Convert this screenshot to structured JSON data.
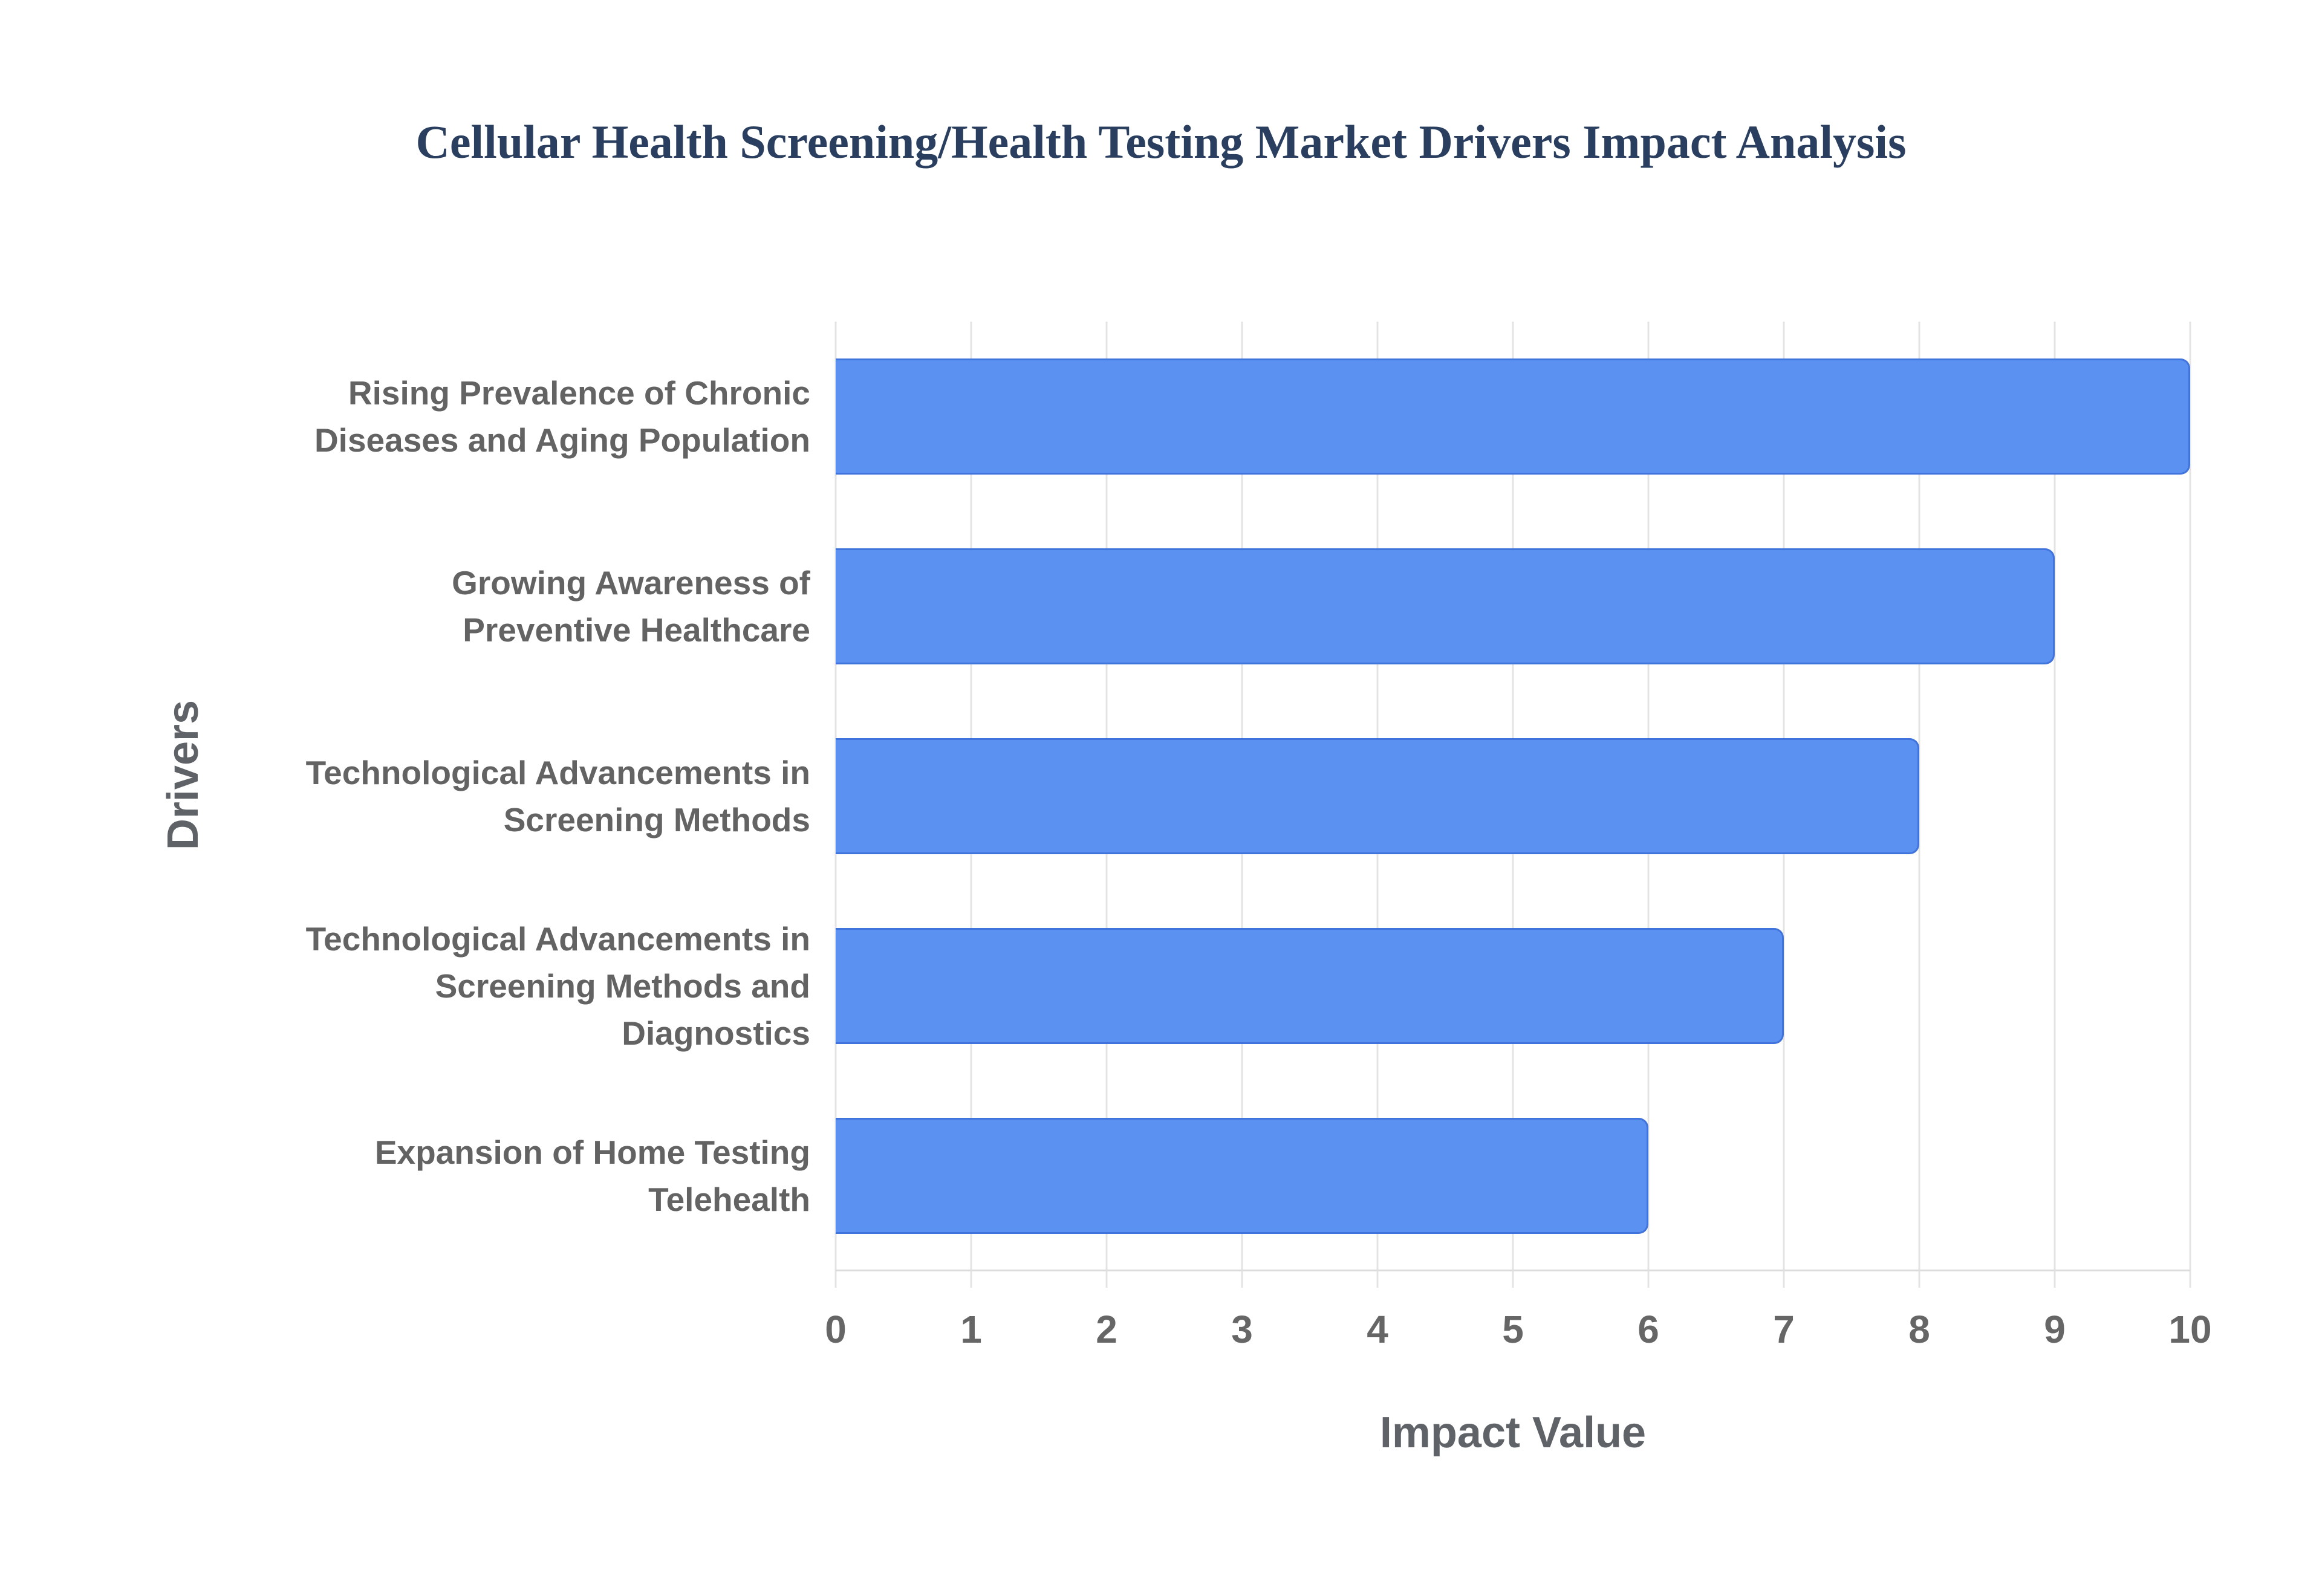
{
  "title": "Cellular Health Screening/Health Testing Market Drivers Impact Analysis",
  "chart_data": {
    "type": "bar",
    "orientation": "horizontal",
    "title": "Cellular Health Screening/Health Testing Market Drivers Impact Analysis",
    "xlabel": "Impact Value",
    "ylabel": "Drivers",
    "xlim": [
      0,
      10
    ],
    "xticks": [
      0,
      1,
      2,
      3,
      4,
      5,
      6,
      7,
      8,
      9,
      10
    ],
    "grid": true,
    "legend": false,
    "categories": [
      "Rising Prevalence of Chronic Diseases and Aging Population",
      "Growing Awareness of Preventive Healthcare",
      "Technological Advancements in Screening Methods",
      "Technological Advancements in Screening Methods and Diagnostics",
      "Expansion of Home Testing Telehealth"
    ],
    "category_lines": [
      [
        "Rising Prevalence of Chronic",
        "Diseases and Aging Population"
      ],
      [
        "Growing Awareness of",
        "Preventive Healthcare"
      ],
      [
        "Technological Advancements in",
        "Screening Methods"
      ],
      [
        "Technological Advancements in",
        "Screening Methods and",
        "Diagnostics"
      ],
      [
        "Expansion of Home Testing",
        "Telehealth"
      ]
    ],
    "values": [
      10,
      9,
      8,
      7,
      6
    ],
    "colors": {
      "bar_fill": "#5b91f0",
      "bar_border": "#4173dd",
      "gridline": "#e4e4e4",
      "axis_line": "#dcdcdc",
      "title_text": "#2a3f5f",
      "axis_text": "#636363",
      "background": "#ffffff"
    }
  }
}
